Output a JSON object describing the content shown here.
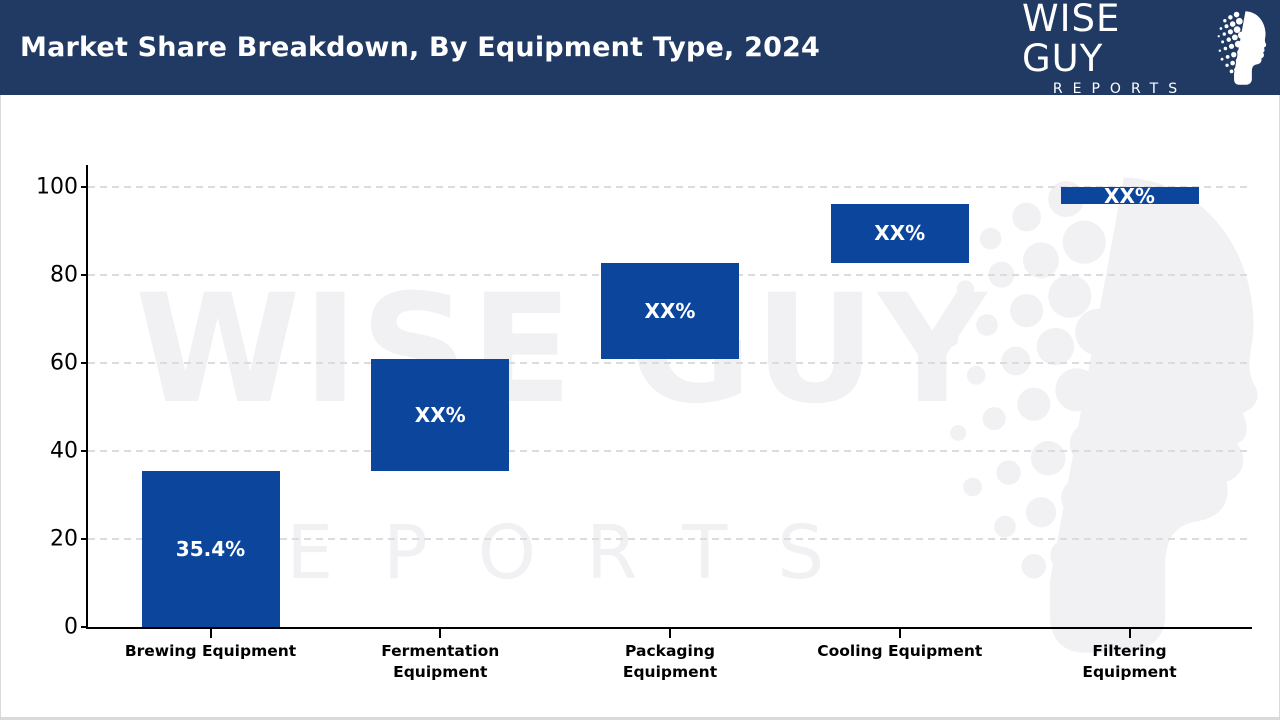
{
  "header": {
    "title": "Market Share Breakdown, By Equipment Type, 2024",
    "logo": {
      "line1": "WISE GUY",
      "line2": "REPORTS"
    }
  },
  "watermark": {
    "line1": "WISE GUY",
    "line2": "REPORTS"
  },
  "chart_data": {
    "type": "bar",
    "subtype": "waterfall",
    "title": "Market Share Breakdown, By Equipment Type, 2024",
    "categories": [
      "Brewing Equipment",
      "Fermentation Equipment",
      "Packaging Equipment",
      "Cooling Equipment",
      "Filtering Equipment"
    ],
    "category_label_lines": [
      [
        "Brewing Equipment"
      ],
      [
        "Fermentation",
        "Equipment"
      ],
      [
        "Packaging",
        "Equipment"
      ],
      [
        "Cooling Equipment"
      ],
      [
        "Filtering",
        "Equipment"
      ]
    ],
    "segments": [
      {
        "category": "Brewing Equipment",
        "from": 0,
        "to": 35.4,
        "label": "35.4%"
      },
      {
        "category": "Fermentation Equipment",
        "from": 35.4,
        "to": 60.9,
        "label": "XX%"
      },
      {
        "category": "Packaging Equipment",
        "from": 60.9,
        "to": 82.8,
        "label": "XX%"
      },
      {
        "category": "Cooling Equipment",
        "from": 82.8,
        "to": 96.1,
        "label": "XX%"
      },
      {
        "category": "Filtering Equipment",
        "from": 96.1,
        "to": 100,
        "label": "XX%"
      }
    ],
    "yticks": [
      0,
      20,
      40,
      60,
      80,
      100
    ],
    "ylim": [
      0,
      105
    ],
    "grid": "horizontal-dashed",
    "legend": "none",
    "bar_color": "#0B459C",
    "bar_label_color": "#ffffff"
  },
  "colors": {
    "header_bg": "#213A63",
    "bar": "#0B459C",
    "gridline": "#dcdcdc",
    "axis": "#000000",
    "watermark": "#f1f1f4"
  }
}
